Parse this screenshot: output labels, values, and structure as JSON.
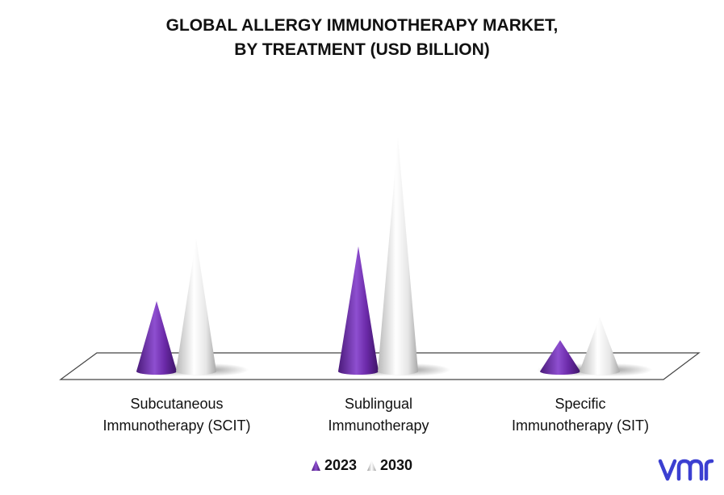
{
  "title": {
    "line1": "GLOBAL ALLERGY IMMUNOTHERAPY MARKET,",
    "line2": "BY TREATMENT (USD BILLION)"
  },
  "colors": {
    "series_2023": "#7a35b8",
    "series_2030": "#d9d9d9",
    "logo": "#3b3fd1"
  },
  "logo_text": "vmr",
  "chart_data": {
    "type": "bar",
    "style": "3d-cone",
    "categories": [
      "Subcutaneous Immunotherapy (SCIT)",
      "Sublingual Immunotherapy",
      "Specific Immunotherapy (SIT)"
    ],
    "category_lines": [
      [
        "Subcutaneous",
        "Immunotherapy (SCIT)"
      ],
      [
        "Sublingual",
        "Immunotherapy"
      ],
      [
        "Specific",
        "Immunotherapy (SIT)"
      ]
    ],
    "series": [
      {
        "name": "2023",
        "values": [
          0.9,
          1.6,
          0.4
        ]
      },
      {
        "name": "2030",
        "values": [
          1.7,
          3.0,
          0.7
        ]
      }
    ],
    "ylim": [
      0,
      3.1
    ],
    "grid": false,
    "legend_position": "bottom"
  }
}
